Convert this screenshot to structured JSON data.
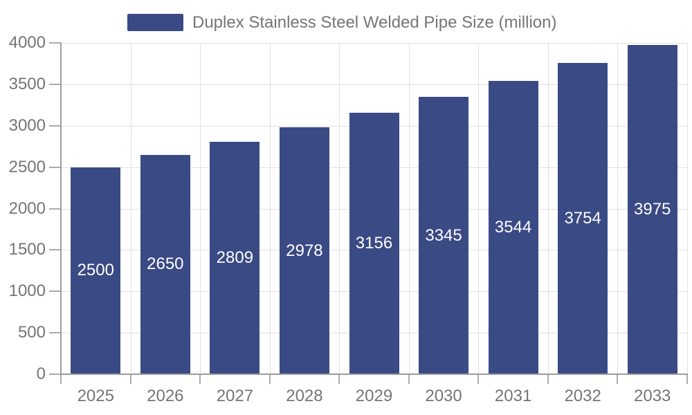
{
  "legend": {
    "label": "Duplex Stainless Steel Welded Pipe Size (million)"
  },
  "colors": {
    "bar": "#3A4A85",
    "value_label": "#FFFFFF",
    "axis_label": "#757575",
    "grid": "#E0E0E0",
    "axis_line": "#9C9C9C"
  },
  "chart_data": {
    "type": "bar",
    "title": "Duplex Stainless Steel Welded Pipe Size (million)",
    "series_name": "Duplex Stainless Steel Welded Pipe Size (million)",
    "categories": [
      "2025",
      "2026",
      "2027",
      "2028",
      "2029",
      "2030",
      "2031",
      "2032",
      "2033"
    ],
    "values": [
      2500,
      2650,
      2809,
      2978,
      3156,
      3345,
      3544,
      3754,
      3975
    ],
    "value_labels": [
      "2500",
      "2650",
      "2809",
      "2978",
      "3156",
      "3345",
      "3544",
      "3754",
      "3975"
    ],
    "xlabel": "",
    "ylabel": "",
    "ylim": [
      0,
      4000
    ],
    "y_ticks": [
      0,
      500,
      1000,
      1500,
      2000,
      2500,
      3000,
      3500,
      4000
    ],
    "y_tick_labels": [
      "0",
      "500",
      "1000",
      "1500",
      "2000",
      "2500",
      "3000",
      "3500",
      "4000"
    ],
    "grid": "both",
    "legend_position": "top",
    "value_label_position": "inside-middle"
  }
}
